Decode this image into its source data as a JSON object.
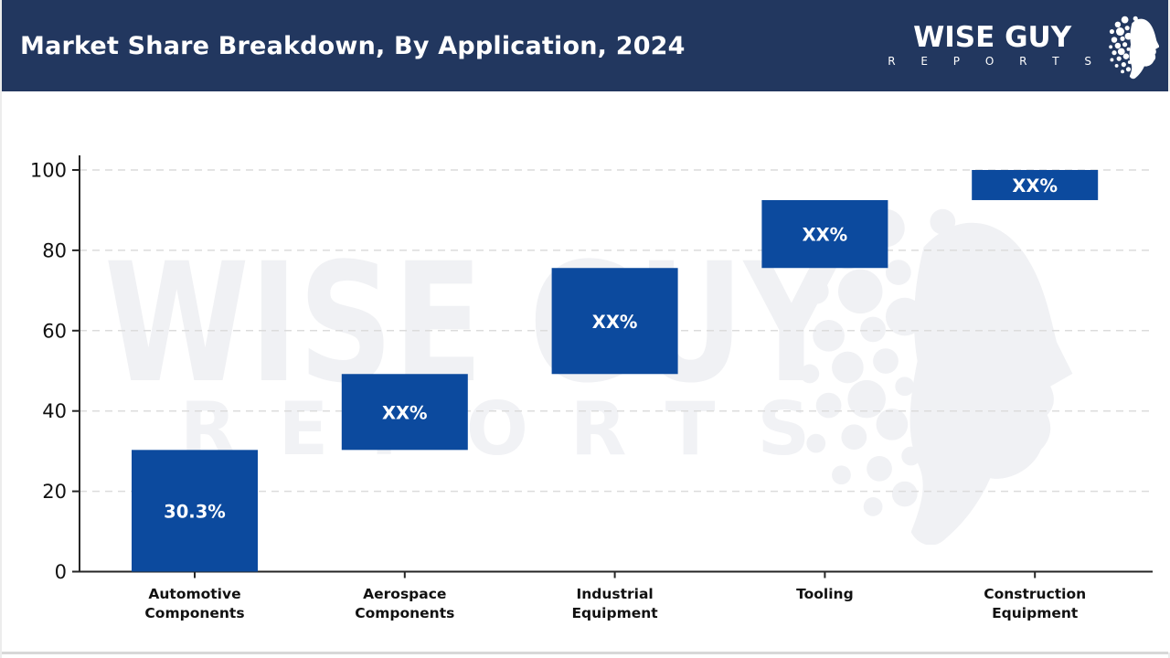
{
  "header": {
    "title": "Market Share Breakdown, By Application, 2024",
    "logo": {
      "name": "WISE GUY",
      "sub": "R E P O R T S"
    }
  },
  "watermark": {
    "line1": "WISE GUY",
    "line2": "REPORTS"
  },
  "chart_data": {
    "type": "bar",
    "subtype": "waterfall",
    "title": "Market Share Breakdown, By Application, 2024",
    "categories": [
      [
        "Automotive",
        "Components"
      ],
      [
        "Aerospace",
        "Components"
      ],
      [
        "Industrial",
        "Equipment"
      ],
      [
        "Tooling"
      ],
      [
        "Construction",
        "Equipment"
      ]
    ],
    "segments": [
      {
        "category": "Automotive Components",
        "start": 0,
        "end": 30.3,
        "label": "30.3%"
      },
      {
        "category": "Aerospace Components",
        "start": 30.3,
        "end": 49.2,
        "label": "XX%"
      },
      {
        "category": "Industrial Equipment",
        "start": 49.2,
        "end": 75.6,
        "label": "XX%"
      },
      {
        "category": "Tooling",
        "start": 75.6,
        "end": 92.5,
        "label": "XX%"
      },
      {
        "category": "Construction Equipment",
        "start": 92.5,
        "end": 100,
        "label": "XX%"
      }
    ],
    "yticks": [
      0,
      20,
      40,
      60,
      80,
      100
    ],
    "ylim": [
      0,
      103.5
    ],
    "xlabel": "",
    "ylabel": "",
    "grid": "dashed-horizontal",
    "legend": null
  },
  "colors": {
    "header_bg": "#22375F",
    "bar": "#0C4A9E",
    "bar_label": "#FFFFFF",
    "axis": "#262626",
    "tick_label": "#111111",
    "grid": "#DCDCDC",
    "watermark": "#F0F1F4",
    "title": "#FFFFFF"
  }
}
